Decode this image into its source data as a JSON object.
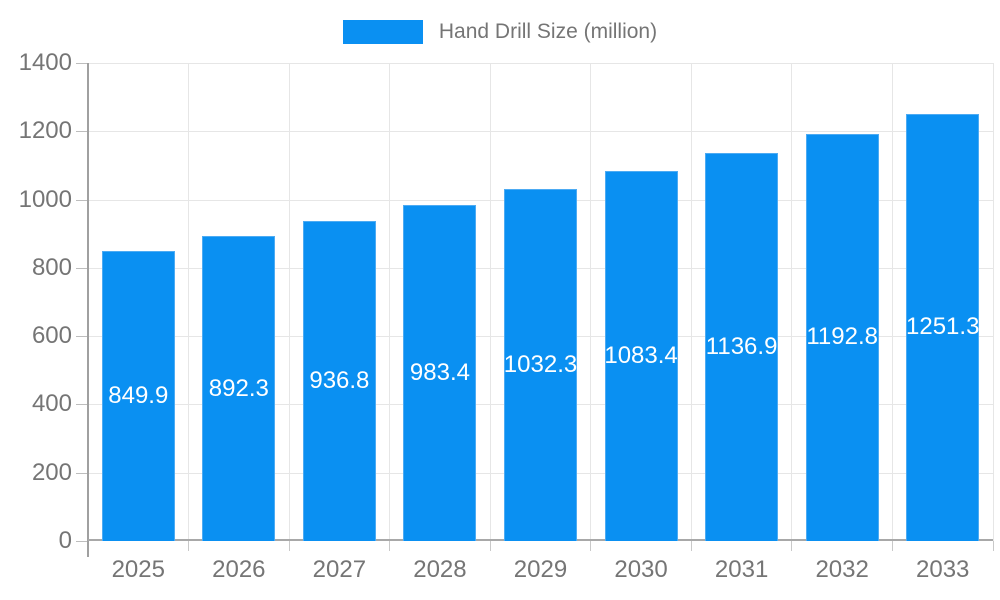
{
  "chart_data": {
    "type": "bar",
    "title": "Hand Drill Size (million)",
    "legend": {
      "label": "Hand Drill Size (million)",
      "position": "top"
    },
    "categories": [
      "2025",
      "2026",
      "2027",
      "2028",
      "2029",
      "2030",
      "2031",
      "2032",
      "2033"
    ],
    "values": [
      849.9,
      892.3,
      936.8,
      983.4,
      1032.3,
      1083.4,
      1136.9,
      1192.8,
      1251.3
    ],
    "value_labels": [
      "849.9",
      "892.3",
      "936.8",
      "983.4",
      "1032.3",
      "1083.4",
      "1136.9",
      "1192.8",
      "1251.3"
    ],
    "xlabel": "",
    "ylabel": "",
    "ylim": [
      0,
      1400
    ],
    "y_ticks": [
      0,
      200,
      400,
      600,
      800,
      1000,
      1200,
      1400
    ],
    "grid": true,
    "colors": {
      "bar": "#0a90f2",
      "bar_border": "#4dabf3",
      "value_label": "#ffffff",
      "axis_text": "#757575",
      "axis_line": "#a0a0a0",
      "gridline": "#e6e6e6"
    }
  }
}
